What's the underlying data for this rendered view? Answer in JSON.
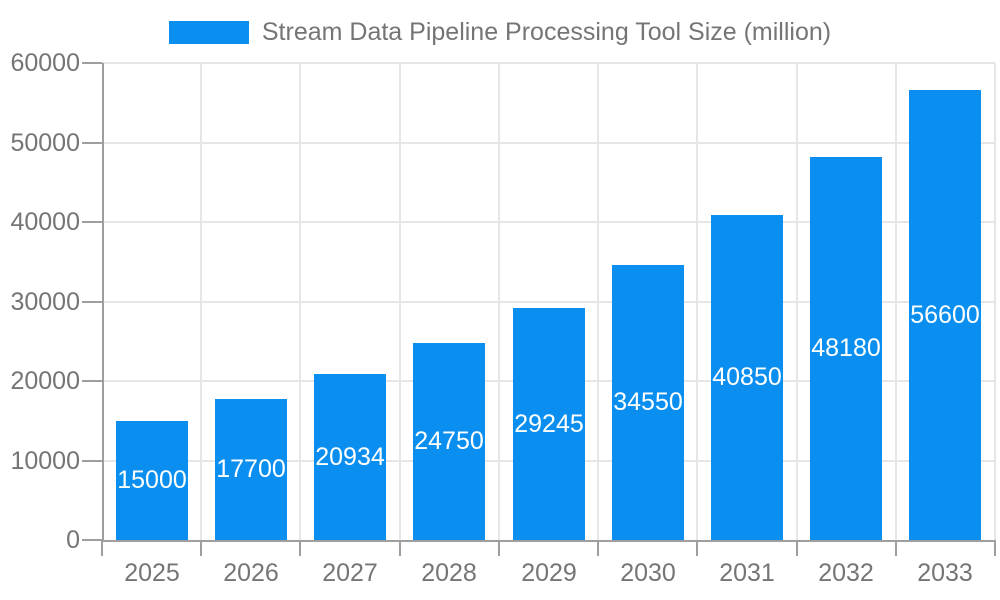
{
  "chart_data": {
    "type": "bar",
    "title": "Stream Data Pipeline Processing Tool Size (million)",
    "categories": [
      "2025",
      "2026",
      "2027",
      "2028",
      "2029",
      "2030",
      "2031",
      "2032",
      "2033"
    ],
    "values": [
      15000,
      17700,
      20934,
      24750,
      29245,
      34550,
      40850,
      48180,
      56600
    ],
    "bar_labels": [
      "15000",
      "17700",
      "20934",
      "24750",
      "29245",
      "34550",
      "40850",
      "48180",
      "56600"
    ],
    "xlabel": "",
    "ylabel": "",
    "ylim": [
      0,
      60000
    ],
    "y_ticks": [
      0,
      10000,
      20000,
      30000,
      40000,
      50000,
      60000
    ],
    "y_tick_labels": [
      "0",
      "10000",
      "20000",
      "30000",
      "40000",
      "50000",
      "60000"
    ],
    "grid": true,
    "legend_position": "top-center",
    "bar_labels_inside": true,
    "colors": {
      "bar": "#0a8ff0",
      "bar_label_text": "#ffffff",
      "axis_text": "#757575",
      "grid_line": "#e6e6e6",
      "axis_line": "#9e9e9e",
      "background": "#ffffff"
    }
  }
}
